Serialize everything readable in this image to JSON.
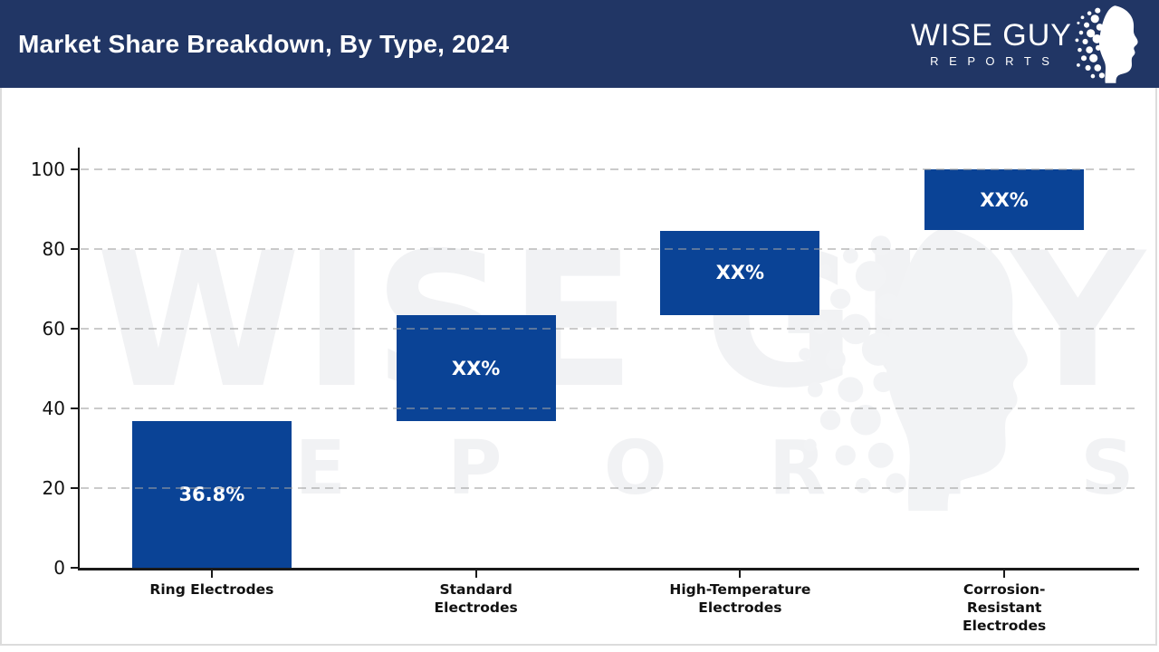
{
  "header": {
    "title": "Market Share Breakdown, By Type, 2024",
    "logo": {
      "name": "WISE GUY",
      "tagline": "R E P O R T S"
    }
  },
  "watermark": {
    "line1": "WISE GUY",
    "line2": "R E P O R T S"
  },
  "colors": {
    "header_bg": "#213665",
    "bar": "#0A4396",
    "bar_label": "#FFFFFF",
    "grid": "#D8D8D8",
    "axis": "#1A1A1A",
    "text": "#111111",
    "watermark": "#F1F2F4",
    "frame": "#DCDCDC"
  },
  "chart_data": {
    "type": "bar",
    "subtype": "waterfall",
    "title": "Market Share Breakdown, By Type, 2024",
    "unit": "%",
    "categories": [
      "Ring Electrodes",
      "Standard Electrodes",
      "High-Temperature Electrodes",
      "Corrosion-Resistant Electrodes"
    ],
    "category_lines": [
      [
        "Ring Electrodes"
      ],
      [
        "Standard",
        "Electrodes"
      ],
      [
        "High-Temperature",
        "Electrodes"
      ],
      [
        "Corrosion-",
        "Resistant",
        "Electrodes"
      ]
    ],
    "segments": [
      {
        "category": "Ring Electrodes",
        "start": 0,
        "end": 36.8,
        "value": 36.8,
        "label": "36.8%"
      },
      {
        "category": "Standard Electrodes",
        "start": 36.8,
        "end": 63.3,
        "value": 26.5,
        "label": "XX%"
      },
      {
        "category": "High-Temperature Electrodes",
        "start": 63.5,
        "end": 84.5,
        "value": 21.0,
        "label": "XX%"
      },
      {
        "category": "Corrosion-Resistant Electrodes",
        "start": 84.7,
        "end": 100,
        "value": 15.3,
        "label": "XX%"
      }
    ],
    "yticks": [
      0,
      20,
      40,
      60,
      80,
      100
    ],
    "ylim": [
      0,
      105
    ],
    "grid": "horizontal-dashed",
    "legend": null
  }
}
